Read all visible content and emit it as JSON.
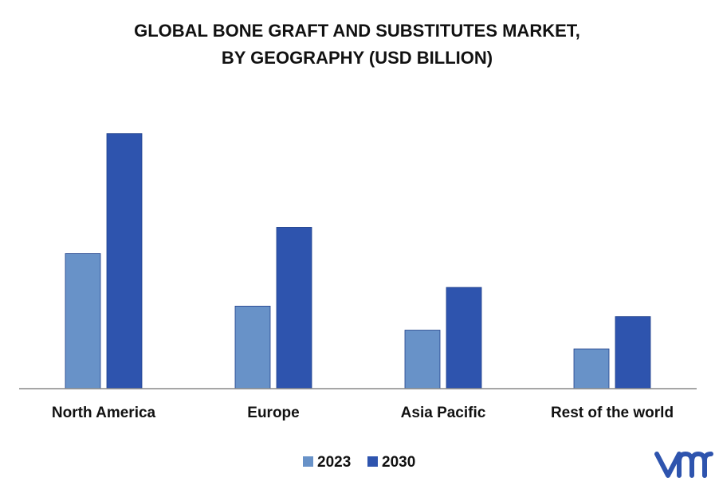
{
  "chart_data": {
    "type": "bar",
    "title": "GLOBAL BONE GRAFT AND SUBSTITUTES MARKET,",
    "subtitle": "BY GEOGRAPHY (USD BILLION)",
    "categories": [
      "North America",
      "Europe",
      "Asia Pacific",
      "Rest of the world"
    ],
    "series": [
      {
        "name": "2023",
        "values": [
          1.8,
          1.1,
          0.78,
          0.53
        ],
        "color": "#6892c8"
      },
      {
        "name": "2030",
        "values": [
          3.4,
          2.15,
          1.35,
          0.96
        ],
        "color": "#2e54ae"
      }
    ],
    "ylim": [
      0,
      3.8
    ],
    "grid": false,
    "legend": "bottom-center",
    "xlabel": "",
    "ylabel": ""
  },
  "logo": {
    "text": "vmr",
    "color": "#2e54ae"
  }
}
